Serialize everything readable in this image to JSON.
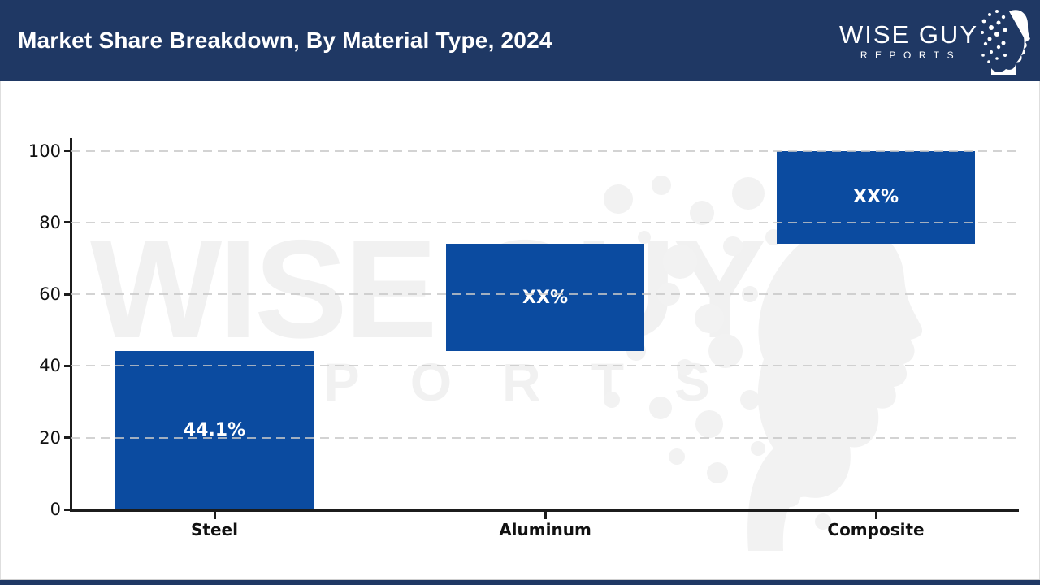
{
  "header": {
    "title": "Market Share Breakdown, By Material Type, 2024",
    "background_color": "#1F3864",
    "logo": {
      "line1": "WISE GUY",
      "line2": "REPORTS"
    }
  },
  "watermark": {
    "line1": "WISE GUY",
    "line2": "REPORTS"
  },
  "chart_data": {
    "type": "bar",
    "subtype": "floating-waterfall",
    "title": "Market Share Breakdown, By Material Type, 2024",
    "categories": [
      "Steel",
      "Aluminum",
      "Composite"
    ],
    "bars": [
      {
        "category": "Steel",
        "start": 0,
        "end": 44.1,
        "label": "44.1%"
      },
      {
        "category": "Aluminum",
        "start": 44.1,
        "end": 74,
        "label": "XX%"
      },
      {
        "category": "Composite",
        "start": 74,
        "end": 100,
        "label": "XX%"
      }
    ],
    "yticks": [
      0,
      20,
      40,
      60,
      80,
      100
    ],
    "ylim": [
      0,
      103.5
    ],
    "xlabel": "",
    "ylabel": "",
    "bar_color": "#0B4BA0",
    "grid": "dashed-horizontal",
    "gridline_color": "#d9d9d9",
    "legend": "none"
  }
}
